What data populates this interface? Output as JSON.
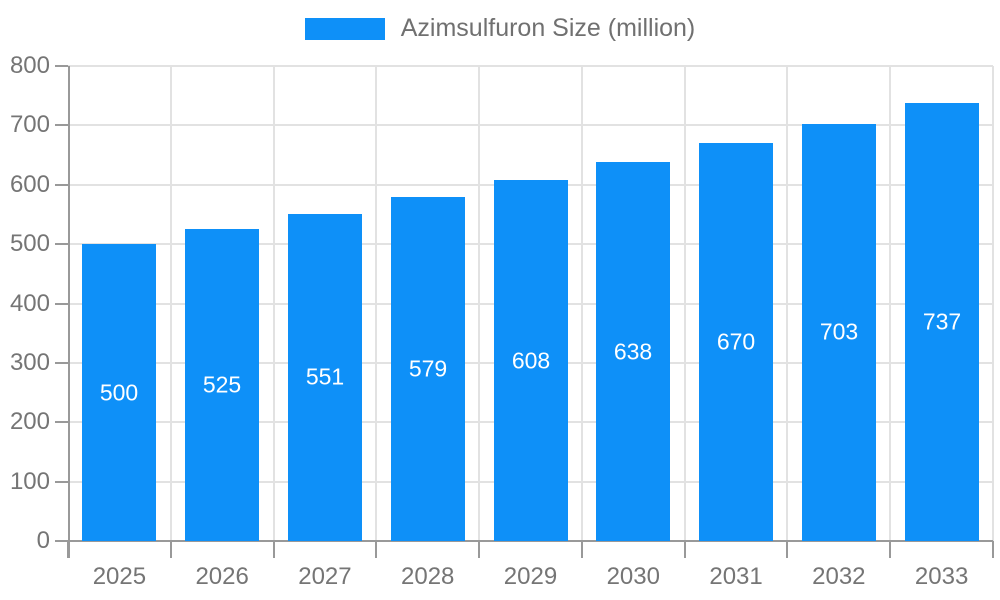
{
  "chart_data": {
    "type": "bar",
    "title": "",
    "legend": {
      "label": "Azimsulfuron Size (million)",
      "position": "top"
    },
    "categories": [
      "2025",
      "2026",
      "2027",
      "2028",
      "2029",
      "2030",
      "2031",
      "2032",
      "2033"
    ],
    "series": [
      {
        "name": "Azimsulfuron Size (million)",
        "values": [
          500,
          525,
          551,
          579,
          608,
          638,
          670,
          703,
          737
        ]
      }
    ],
    "xlabel": "",
    "ylabel": "",
    "ylim": [
      0,
      800
    ],
    "ytick_step": 100,
    "ytick_labels": [
      "0",
      "100",
      "200",
      "300",
      "400",
      "500",
      "600",
      "700",
      "800"
    ],
    "grid": true,
    "value_labels_shown": true,
    "colors": {
      "bar": "#0E90F8",
      "value_label": "#FFFFFF",
      "grid": "#E2E2E2",
      "axis": "#999999",
      "tick_label": "#757575",
      "legend_label": "#707070",
      "background": "#FFFFFF"
    }
  }
}
